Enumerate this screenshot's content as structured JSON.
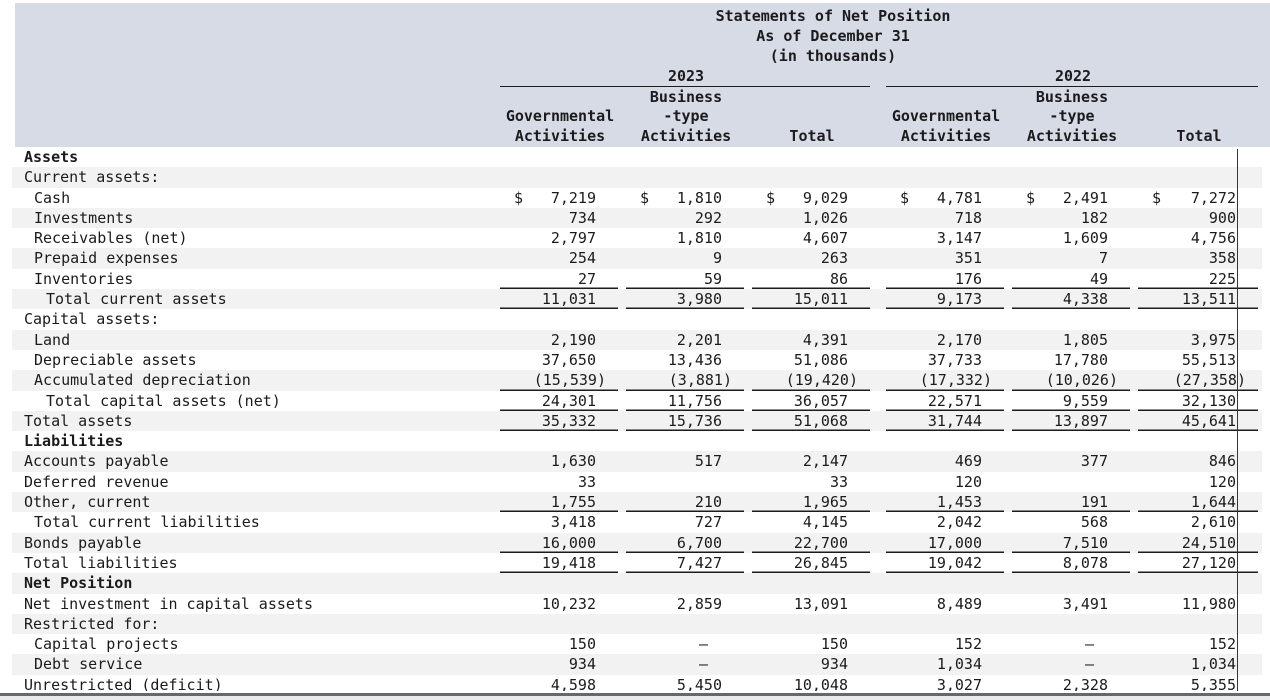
{
  "title": {
    "line1": "Statements of Net Position",
    "line2": "As of December 31",
    "line3": "(in thousands)"
  },
  "year_groups": [
    {
      "year": "2023"
    },
    {
      "year": "2022"
    }
  ],
  "column_headers": {
    "governmental": [
      "Governmental",
      "Activities"
    ],
    "business_type": [
      "Business",
      "-type",
      "Activities"
    ],
    "total": [
      "Total"
    ]
  },
  "colors": {
    "header_background": "#d6dbe5",
    "row_stripe": "#f2f2f3",
    "text": "#1b1b1b",
    "rule_line": "#1b1b1b",
    "page_boundary_blue": "#1f3a60",
    "window_edge_gray": "#67686a"
  },
  "rows": [
    {
      "label": "Assets",
      "bold": true,
      "indent": 0,
      "dollar": false,
      "underline": false,
      "values": [
        "",
        "",
        "",
        "",
        "",
        ""
      ]
    },
    {
      "label": "Current assets:",
      "bold": false,
      "indent": 0,
      "dollar": false,
      "underline": false,
      "values": [
        "",
        "",
        "",
        "",
        "",
        ""
      ]
    },
    {
      "label": "Cash",
      "bold": false,
      "indent": 1,
      "dollar": true,
      "underline": false,
      "values": [
        "7,219",
        "1,810",
        "9,029",
        "4,781",
        "2,491",
        "7,272"
      ]
    },
    {
      "label": "Investments",
      "bold": false,
      "indent": 1,
      "dollar": false,
      "underline": false,
      "values": [
        "734",
        "292",
        "1,026",
        "718",
        "182",
        "900"
      ]
    },
    {
      "label": "Receivables (net)",
      "bold": false,
      "indent": 1,
      "dollar": false,
      "underline": false,
      "values": [
        "2,797",
        "1,810",
        "4,607",
        "3,147",
        "1,609",
        "4,756"
      ]
    },
    {
      "label": "Prepaid expenses",
      "bold": false,
      "indent": 1,
      "dollar": false,
      "underline": false,
      "values": [
        "254",
        "9",
        "263",
        "351",
        "7",
        "358"
      ]
    },
    {
      "label": "Inventories",
      "bold": false,
      "indent": 1,
      "dollar": false,
      "underline": true,
      "values": [
        "27",
        "59",
        "86",
        "176",
        "49",
        "225"
      ]
    },
    {
      "label": "Total current assets",
      "bold": false,
      "indent": 2,
      "dollar": false,
      "underline": true,
      "values": [
        "11,031",
        "3,980",
        "15,011",
        "9,173",
        "4,338",
        "13,511"
      ]
    },
    {
      "label": "Capital assets:",
      "bold": false,
      "indent": 0,
      "dollar": false,
      "underline": false,
      "values": [
        "",
        "",
        "",
        "",
        "",
        ""
      ]
    },
    {
      "label": "Land",
      "bold": false,
      "indent": 1,
      "dollar": false,
      "underline": false,
      "values": [
        "2,190",
        "2,201",
        "4,391",
        "2,170",
        "1,805",
        "3,975"
      ]
    },
    {
      "label": "Depreciable assets",
      "bold": false,
      "indent": 1,
      "dollar": false,
      "underline": false,
      "values": [
        "37,650",
        "13,436",
        "51,086",
        "37,733",
        "17,780",
        "55,513"
      ]
    },
    {
      "label": "Accumulated depreciation",
      "bold": false,
      "indent": 1,
      "dollar": false,
      "underline": true,
      "values": [
        "(15,539)",
        "(3,881)",
        "(19,420)",
        "(17,332)",
        "(10,026)",
        "(27,358)"
      ]
    },
    {
      "label": "Total capital assets (net)",
      "bold": false,
      "indent": 2,
      "dollar": false,
      "underline": true,
      "values": [
        "24,301",
        "11,756",
        "36,057",
        "22,571",
        "9,559",
        "32,130"
      ]
    },
    {
      "label": "Total assets",
      "bold": false,
      "indent": 0,
      "dollar": false,
      "underline": true,
      "values": [
        "35,332",
        "15,736",
        "51,068",
        "31,744",
        "13,897",
        "45,641"
      ]
    },
    {
      "label": "Liabilities",
      "bold": true,
      "indent": 0,
      "dollar": false,
      "underline": false,
      "values": [
        "",
        "",
        "",
        "",
        "",
        ""
      ]
    },
    {
      "label": "Accounts payable",
      "bold": false,
      "indent": 0,
      "dollar": false,
      "underline": false,
      "values": [
        "1,630",
        "517",
        "2,147",
        "469",
        "377",
        "846"
      ]
    },
    {
      "label": "Deferred revenue",
      "bold": false,
      "indent": 0,
      "dollar": false,
      "underline": false,
      "values": [
        "33",
        "",
        "33",
        "120",
        "",
        "120"
      ]
    },
    {
      "label": "Other, current",
      "bold": false,
      "indent": 0,
      "dollar": false,
      "underline": true,
      "values": [
        "1,755",
        "210",
        "1,965",
        "1,453",
        "191",
        "1,644"
      ]
    },
    {
      "label": "Total current liabilities",
      "bold": false,
      "indent": 1,
      "dollar": false,
      "underline": false,
      "values": [
        "3,418",
        "727",
        "4,145",
        "2,042",
        "568",
        "2,610"
      ]
    },
    {
      "label": "Bonds payable",
      "bold": false,
      "indent": 0,
      "dollar": false,
      "underline": true,
      "values": [
        "16,000",
        "6,700",
        "22,700",
        "17,000",
        "7,510",
        "24,510"
      ]
    },
    {
      "label": "Total liabilities",
      "bold": false,
      "indent": 0,
      "dollar": false,
      "underline": true,
      "values": [
        "19,418",
        "7,427",
        "26,845",
        "19,042",
        "8,078",
        "27,120"
      ]
    },
    {
      "label": "Net Position",
      "bold": true,
      "indent": 0,
      "dollar": false,
      "underline": false,
      "values": [
        "",
        "",
        "",
        "",
        "",
        ""
      ]
    },
    {
      "label": "Net investment in capital assets",
      "bold": false,
      "indent": 0,
      "dollar": false,
      "underline": false,
      "values": [
        "10,232",
        "2,859",
        "13,091",
        "8,489",
        "3,491",
        "11,980"
      ]
    },
    {
      "label": "Restricted for:",
      "bold": false,
      "indent": 0,
      "dollar": false,
      "underline": false,
      "values": [
        "",
        "",
        "",
        "",
        "",
        ""
      ]
    },
    {
      "label": "Capital projects",
      "bold": false,
      "indent": 1,
      "dollar": false,
      "underline": false,
      "values": [
        "150",
        "—",
        "150",
        "152",
        "—",
        "152"
      ]
    },
    {
      "label": "Debt service",
      "bold": false,
      "indent": 1,
      "dollar": false,
      "underline": false,
      "values": [
        "934",
        "—",
        "934",
        "1,034",
        "—",
        "1,034"
      ]
    },
    {
      "label": "Unrestricted (deficit)",
      "bold": false,
      "indent": 0,
      "dollar": false,
      "underline": false,
      "values": [
        "4,598",
        "5,450",
        "10,048",
        "3,027",
        "2,328",
        "5,355"
      ]
    }
  ]
}
